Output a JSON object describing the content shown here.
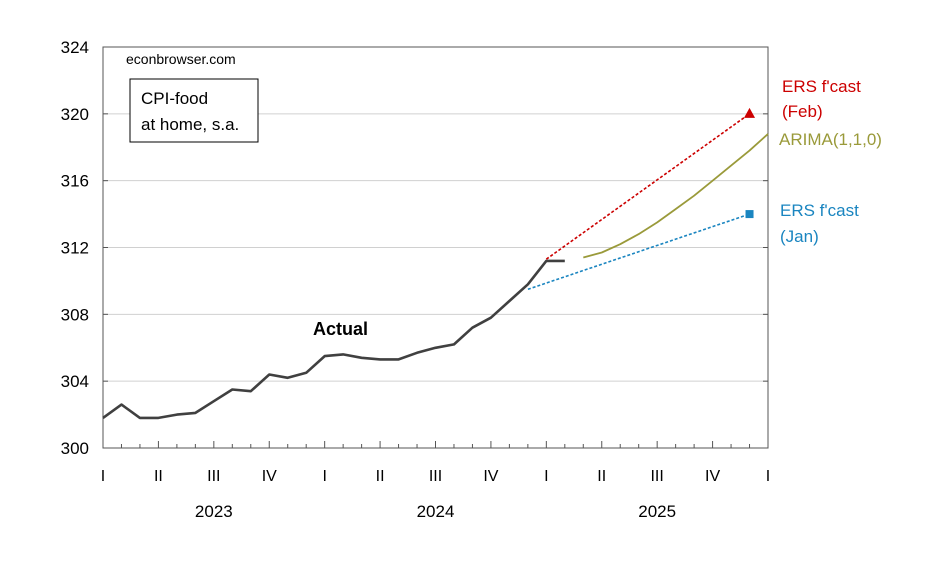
{
  "chart_data": {
    "type": "line",
    "source_label": "econbrowser.com",
    "legend_box": {
      "line1": "CPI-food",
      "line2": "at home, s.a."
    },
    "ylim": [
      300,
      324
    ],
    "y_ticks": [
      "300",
      "304",
      "308",
      "312",
      "316",
      "320",
      "324"
    ],
    "x_quarter_ticks": [
      "I",
      "II",
      "III",
      "IV",
      "I",
      "II",
      "III",
      "IV",
      "I",
      "II",
      "III",
      "IV",
      "I"
    ],
    "x_years": [
      "2023",
      "2024",
      "2025"
    ],
    "series": [
      {
        "name": "Actual",
        "color": "#404040",
        "x": [
          "2023-01",
          "2023-02",
          "2023-03",
          "2023-04",
          "2023-05",
          "2023-06",
          "2023-07",
          "2023-08",
          "2023-09",
          "2023-10",
          "2023-11",
          "2023-12",
          "2024-01",
          "2024-02",
          "2024-03",
          "2024-04",
          "2024-05",
          "2024-06",
          "2024-07",
          "2024-08",
          "2024-09",
          "2024-10",
          "2024-11",
          "2024-12",
          "2025-01",
          "2025-02"
        ],
        "values": [
          301.8,
          302.6,
          301.8,
          301.8,
          302.0,
          302.1,
          302.8,
          303.5,
          303.4,
          304.4,
          304.2,
          304.5,
          305.5,
          305.6,
          305.4,
          305.3,
          305.3,
          305.7,
          306.0,
          306.2,
          307.2,
          307.8,
          308.8,
          309.8,
          311.2,
          311.2
        ]
      },
      {
        "name": "ERS f'cast (Feb)",
        "label_line1": "ERS f'cast",
        "label_line2": "(Feb)",
        "color": "#cc0000",
        "x": [
          "2025-01",
          "2025-12"
        ],
        "values": [
          311.3,
          320.0
        ]
      },
      {
        "name": "ARIMA(1,1,0)",
        "label_line1": "ARIMA(1,1,0)",
        "color": "#9a9a3a",
        "x": [
          "2025-03",
          "2025-04",
          "2025-05",
          "2025-06",
          "2025-07",
          "2025-08",
          "2025-09",
          "2025-10",
          "2025-11",
          "2025-12",
          "2026-01"
        ],
        "values": [
          311.4,
          311.7,
          312.2,
          312.8,
          313.5,
          314.3,
          315.1,
          316.0,
          316.9,
          317.8,
          318.8
        ]
      },
      {
        "name": "ERS f'cast (Jan)",
        "label_line1": "ERS f'cast",
        "label_line2": "(Jan)",
        "color": "#1a85c0",
        "x": [
          "2024-12",
          "2025-12"
        ],
        "values": [
          309.5,
          314.0
        ]
      }
    ],
    "annotations": [
      {
        "text": "Actual",
        "x": "2024-01",
        "y": 307.0
      }
    ],
    "grid": true
  }
}
